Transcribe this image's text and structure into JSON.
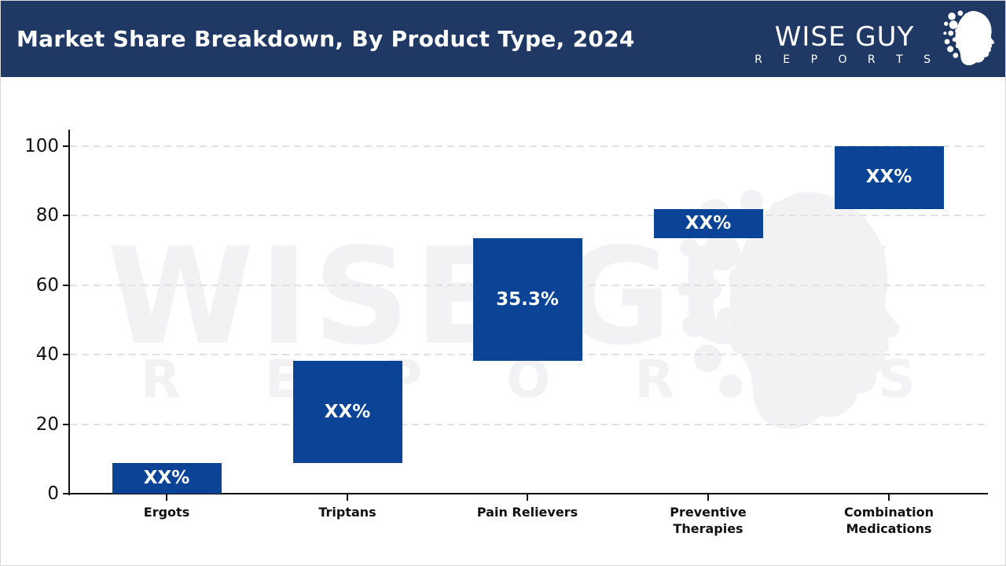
{
  "header": {
    "title": "Market Share Breakdown, By Product Type, 2024",
    "bg_color": "#1f3864",
    "logo": {
      "line1": "WISE GUY",
      "line2": "R E P O R T S",
      "head_icon": "dotted-head-profile-icon"
    }
  },
  "watermark": {
    "line1": "WISE GUY",
    "line2": "R E P O R T S",
    "head_icon": "dotted-head-profile-watermark"
  },
  "chart_data": {
    "type": "bar",
    "subtype": "floating-waterfall",
    "title": "Market Share Breakdown, By Product Type, 2024",
    "categories": [
      "Ergots",
      "Triptans",
      "Pain Relievers",
      "Preventive Therapies",
      "Combination Medications"
    ],
    "segments": [
      {
        "category": "Ergots",
        "start": 0,
        "end": 8.8,
        "value": 8.8,
        "label": "XX%"
      },
      {
        "category": "Triptans",
        "start": 8.8,
        "end": 38.2,
        "value": 29.4,
        "label": "XX%"
      },
      {
        "category": "Pain Relievers",
        "start": 38.2,
        "end": 73.5,
        "value": 35.3,
        "label": "35.3%"
      },
      {
        "category": "Preventive Therapies",
        "start": 73.5,
        "end": 82.0,
        "value": 8.5,
        "label": "XX%"
      },
      {
        "category": "Combination Medications",
        "start": 82.0,
        "end": 100.0,
        "value": 18.0,
        "label": "XX%"
      }
    ],
    "xlabel": "",
    "ylabel": "",
    "ylim": [
      0,
      100
    ],
    "yticks": [
      0,
      20,
      40,
      60,
      80,
      100
    ],
    "grid": "horizontal-dashed",
    "legend": "none",
    "bar_color": "#0b4397",
    "bar_label_color": "#ffffff",
    "axis_color": "#111111"
  }
}
